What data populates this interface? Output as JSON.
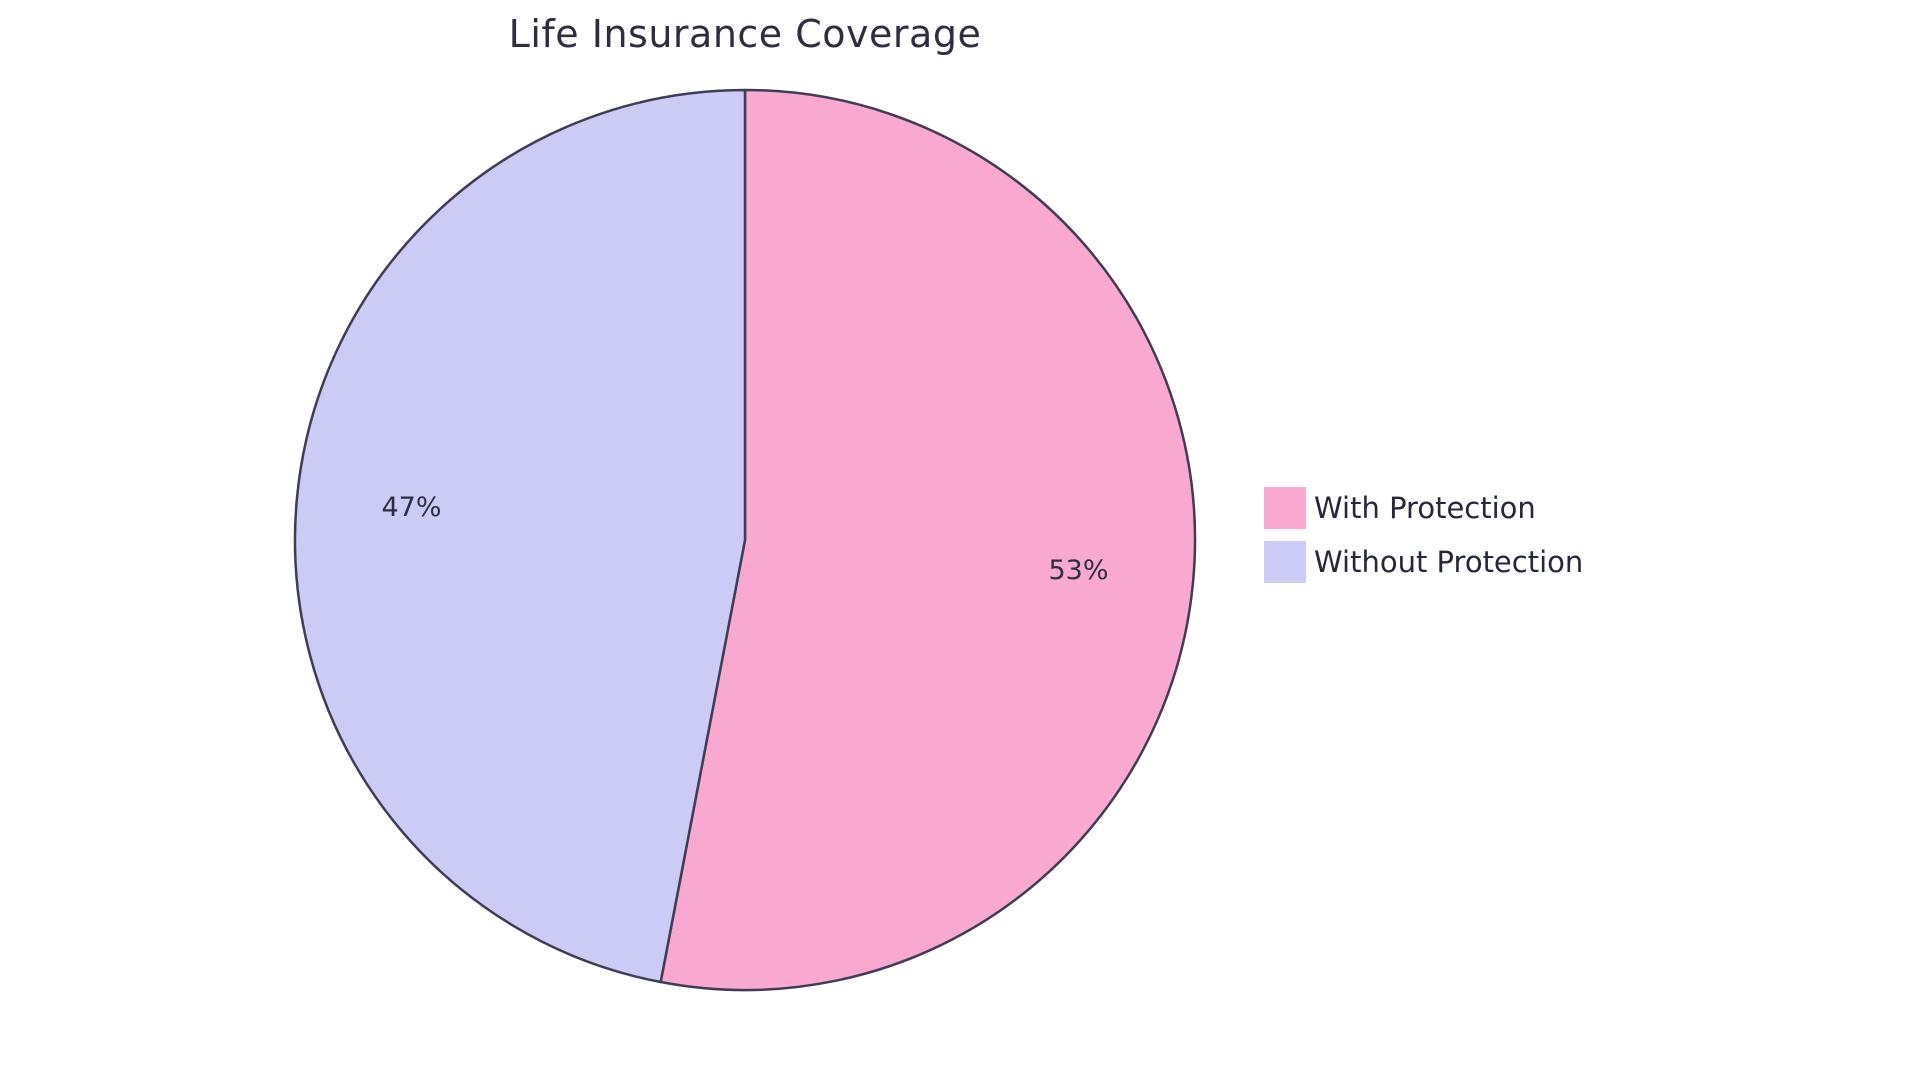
{
  "title": "Life Insurance Coverage",
  "chart_data": {
    "type": "pie",
    "title": "Life Insurance Coverage",
    "labels": [
      "With Protection",
      "Without Protection"
    ],
    "values": [
      53,
      47
    ],
    "slice_labels": [
      "53%",
      "47%"
    ],
    "colors": [
      "#F9A8D0",
      "#CBCBF5"
    ],
    "start_angle_deg": 0,
    "direction": "clockwise",
    "legend_position": "right"
  },
  "legend": {
    "items": [
      {
        "label": "With Protection",
        "color": "#F9A8D0"
      },
      {
        "label": "Without Protection",
        "color": "#CBCBF5"
      }
    ]
  },
  "styles": {
    "border_color": "#3F3D56",
    "text_color": "#2F2E41",
    "background": "#FFFFFF"
  }
}
